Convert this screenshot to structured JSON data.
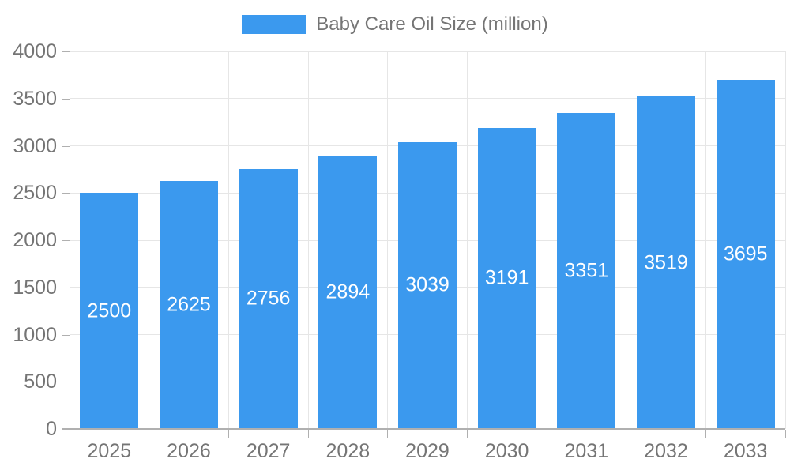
{
  "legend": {
    "label": "Baby Care Oil Size (million)"
  },
  "colors": {
    "bar": "#3B99EE",
    "grid": "#e6e6e6",
    "axis": "#b0b0b0",
    "text": "#757575",
    "bar_label": "#ffffff"
  },
  "chart_data": {
    "type": "bar",
    "title": "Baby Care Oil Size (million)",
    "series_name": "Baby Care Oil Size (million)",
    "categories": [
      "2025",
      "2026",
      "2027",
      "2028",
      "2029",
      "2030",
      "2031",
      "2032",
      "2033"
    ],
    "values": [
      2500,
      2625,
      2756,
      2894,
      3039,
      3191,
      3351,
      3519,
      3695
    ],
    "bar_labels": [
      "2500",
      "2625",
      "2756",
      "2894",
      "3039",
      "3191",
      "3351",
      "3519",
      "3695"
    ],
    "xlabel": "",
    "ylabel": "",
    "ylim": [
      0,
      4000
    ],
    "ytick_step": 500,
    "ytick_labels": [
      "0",
      "500",
      "1000",
      "1500",
      "2000",
      "2500",
      "3000",
      "3500",
      "4000"
    ],
    "grid": true,
    "legend_position": "top",
    "bar_labels_visible": true
  }
}
